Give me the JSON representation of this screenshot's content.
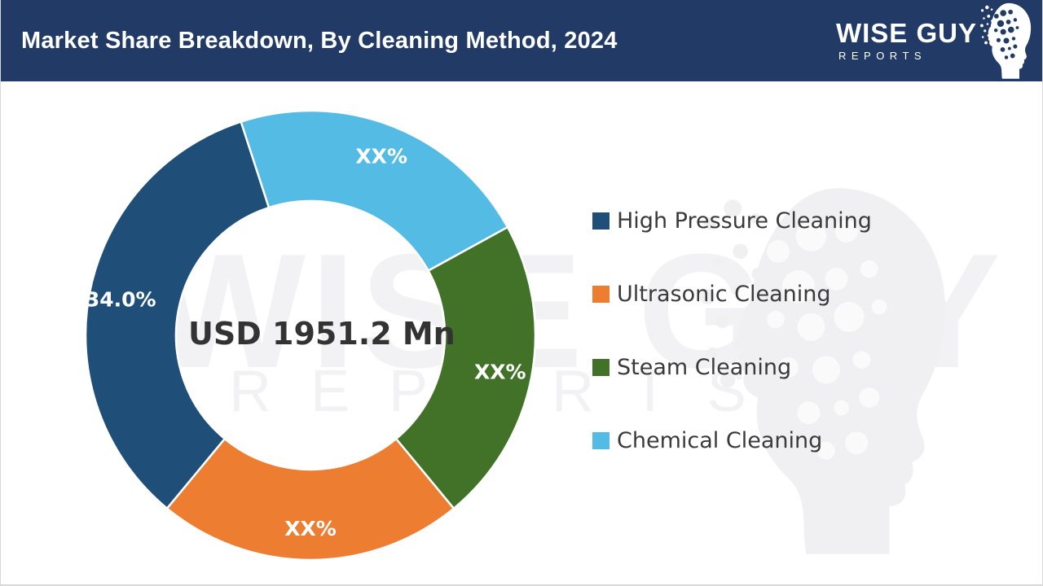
{
  "header": {
    "title": "Market Share Breakdown, By Cleaning Method, 2024",
    "background": "#213A66",
    "logo": {
      "name": "WISE GUY",
      "subname": "REPORTS"
    }
  },
  "chart_data": {
    "type": "pie",
    "subtype": "donut",
    "title": "Market Share Breakdown, By Cleaning Method, 2024",
    "center_label": "USD 1951.2 Mn",
    "start_angle_deg": -18,
    "direction": "counterclockwise",
    "legend_position": "right",
    "series": [
      {
        "name": "High Pressure Cleaning",
        "value": 34.0,
        "label": "34.0%",
        "color": "#1F4E78"
      },
      {
        "name": "Ultrasonic Cleaning",
        "value": 22.0,
        "label": "XX%",
        "color": "#ED7D31"
      },
      {
        "name": "Steam Cleaning",
        "value": 22.0,
        "label": "XX%",
        "color": "#417228"
      },
      {
        "name": "Chemical Cleaning",
        "value": 22.0,
        "label": "XX%",
        "color": "#54BCE4"
      }
    ]
  },
  "watermark": {
    "line1": "WISE GUY",
    "line2": "REPORTS"
  }
}
